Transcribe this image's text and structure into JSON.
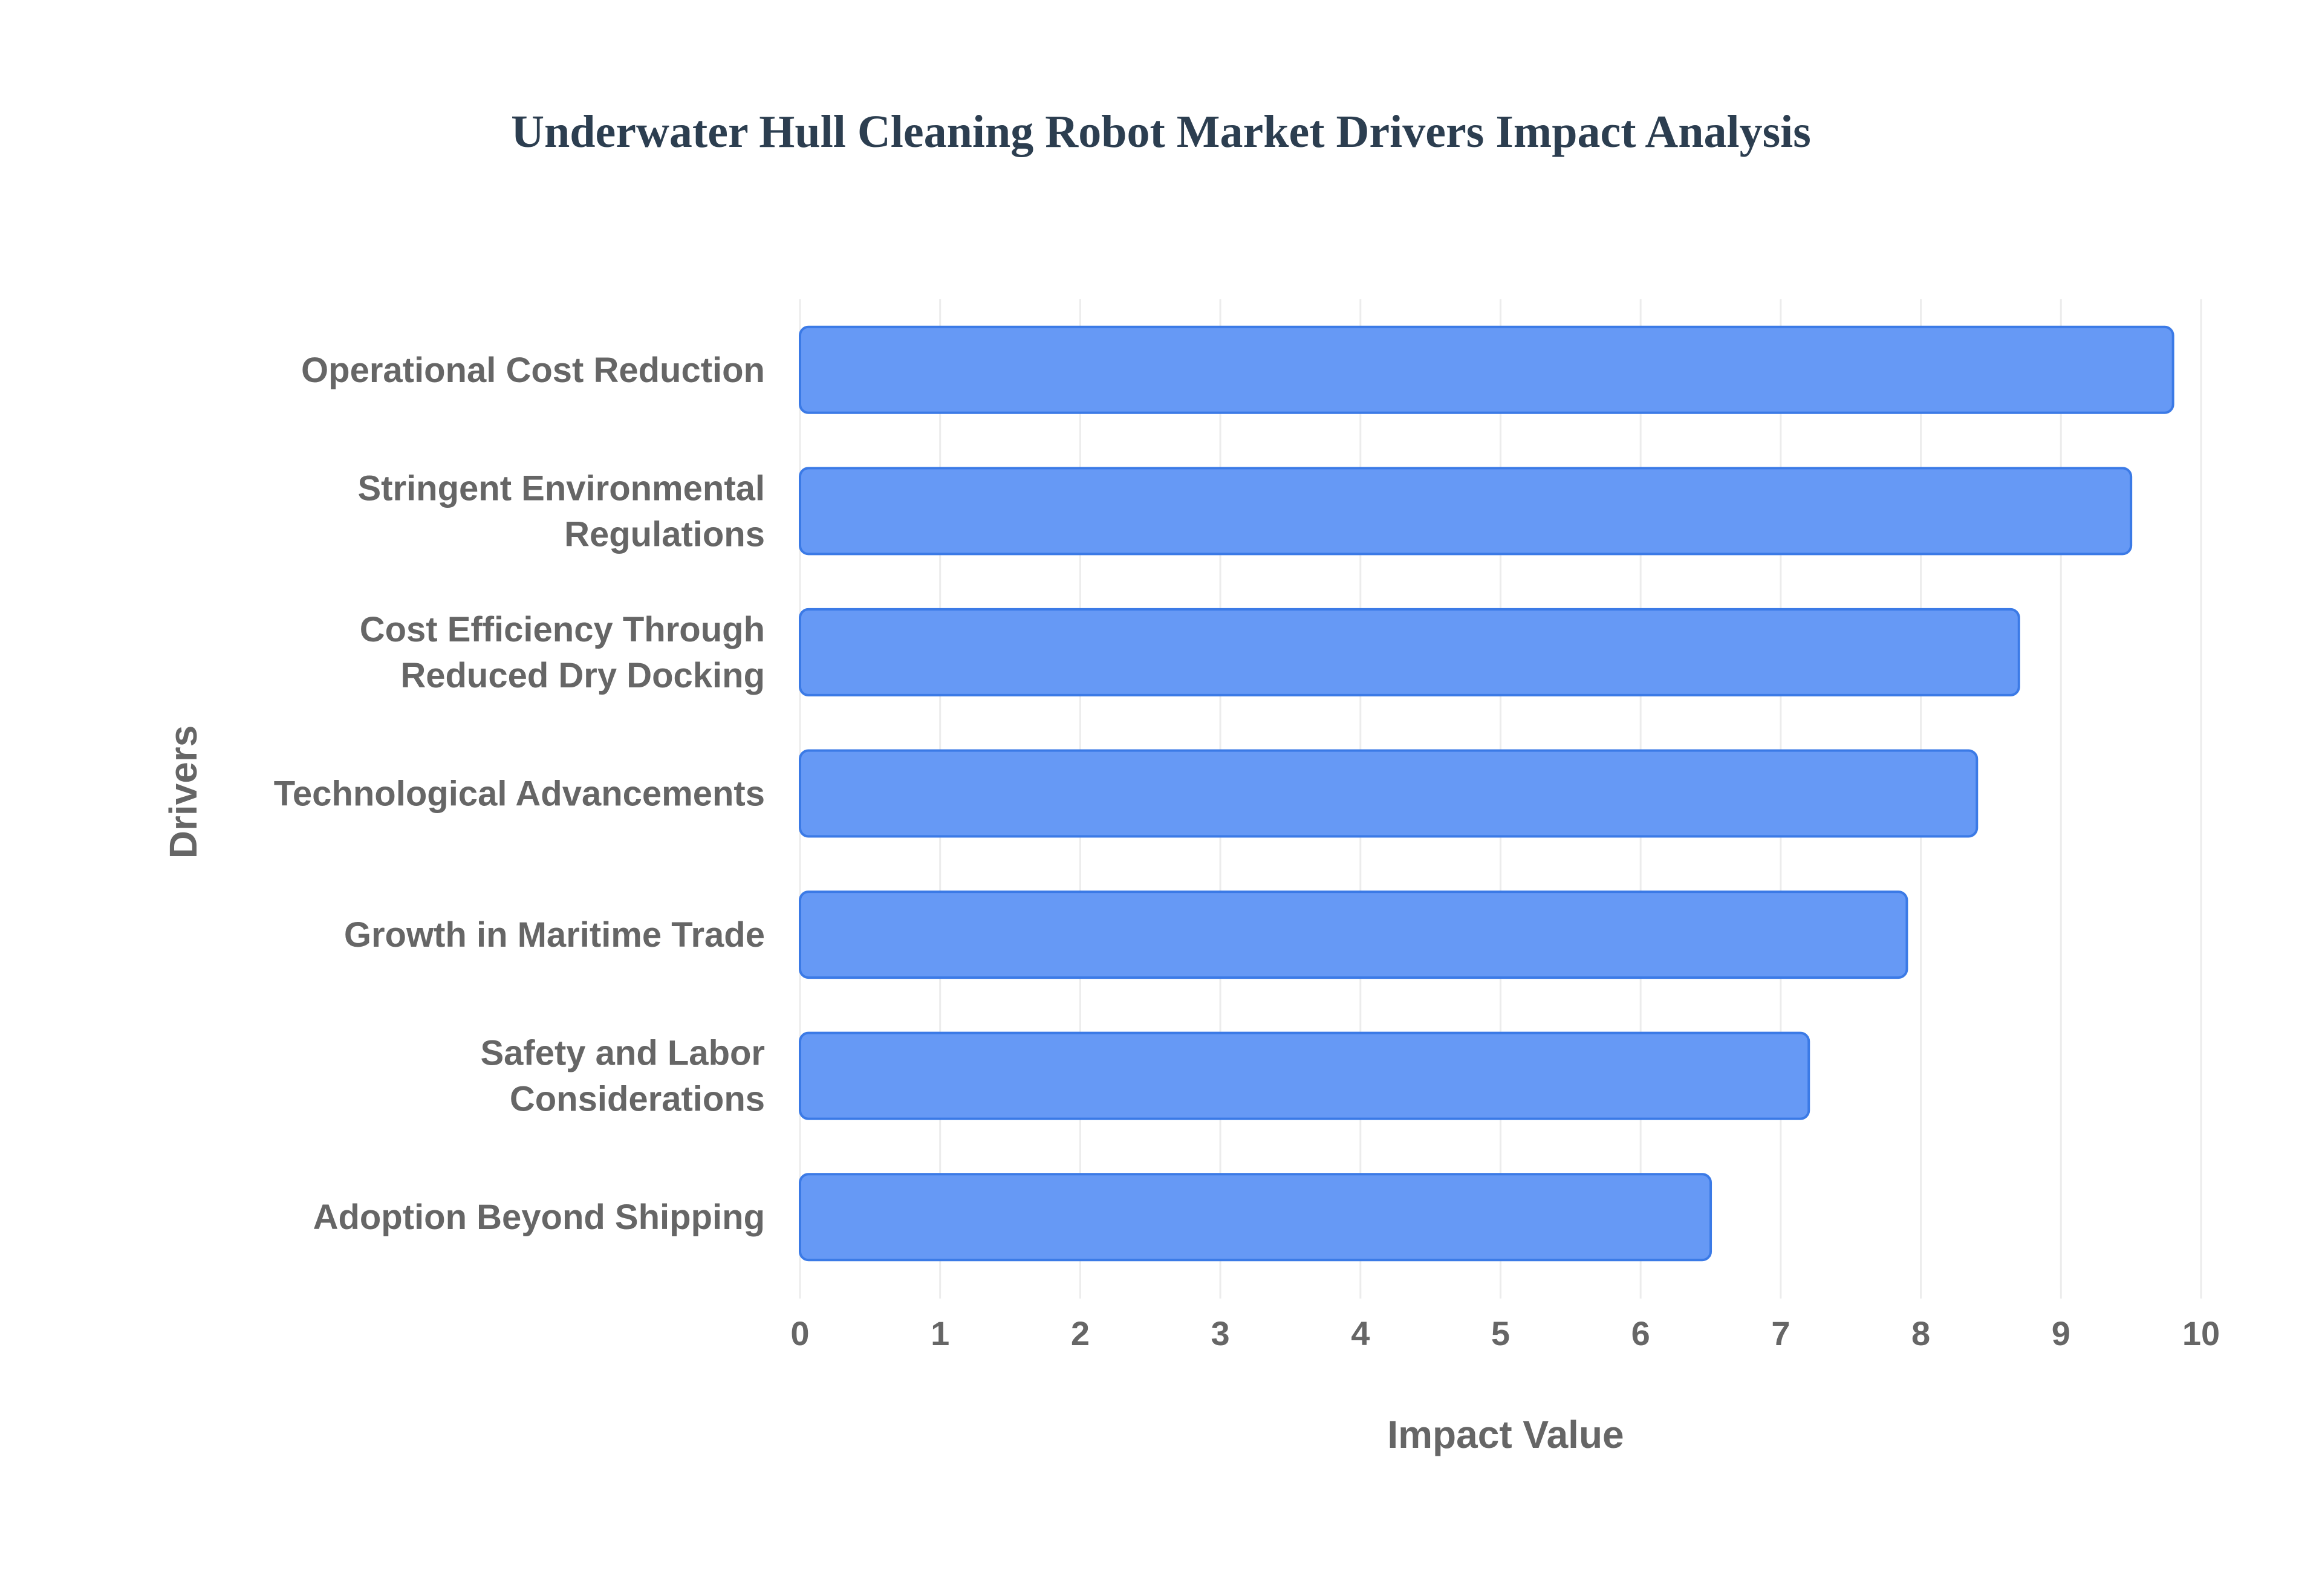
{
  "chart_data": {
    "type": "bar",
    "orientation": "horizontal",
    "title": "Underwater Hull Cleaning Robot Market Drivers Impact Analysis",
    "xlabel": "Impact Value",
    "ylabel": "Drivers",
    "categories": [
      [
        "Operational Cost Reduction"
      ],
      [
        "Stringent Environmental",
        "Regulations"
      ],
      [
        "Cost Efficiency Through",
        "Reduced Dry Docking"
      ],
      [
        "Technological Advancements"
      ],
      [
        "Growth in Maritime Trade"
      ],
      [
        "Safety and Labor",
        "Considerations"
      ],
      [
        "Adoption Beyond Shipping"
      ]
    ],
    "values": [
      9.8,
      9.5,
      8.7,
      8.4,
      7.9,
      7.2,
      6.5
    ],
    "xlim": [
      0,
      10
    ],
    "xticks": [
      "0",
      "1",
      "2",
      "3",
      "4",
      "5",
      "6",
      "7",
      "8",
      "9",
      "10"
    ],
    "grid": true,
    "legend": "none",
    "colors": {
      "bar_fill": "#6699f5",
      "bar_stroke": "#3b7ae6",
      "grid": "#ececec",
      "text": "#666666",
      "title": "#2c3e50"
    }
  }
}
